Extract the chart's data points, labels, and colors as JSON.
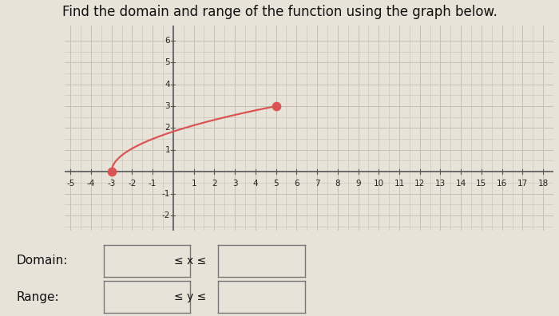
{
  "title": "Find the domain and range of the function using the graph below.",
  "title_fontsize": 12,
  "background_color": "#e8e3d8",
  "grid_color": "#c8c0b0",
  "axis_color": "#555555",
  "curve_color": "#d95555",
  "dot_color": "#d95555",
  "dot_size": 55,
  "x_start": -3,
  "y_start": 0,
  "x_end": 5,
  "y_end": 3,
  "xlim": [
    -5.3,
    18.5
  ],
  "ylim": [
    -2.7,
    6.7
  ],
  "xticks": [
    -5,
    -4,
    -3,
    -2,
    -1,
    1,
    2,
    3,
    4,
    5,
    6,
    7,
    8,
    9,
    10,
    11,
    12,
    13,
    14,
    15,
    16,
    17,
    18
  ],
  "yticks": [
    -2,
    -1,
    1,
    2,
    3,
    4,
    5,
    6
  ],
  "minor_xticks": [
    -4.5,
    -3.5,
    -2.5,
    -1.5,
    -0.5,
    0.5,
    1.5,
    2.5,
    3.5,
    4.5,
    5.5,
    6.5,
    7.5,
    8.5,
    9.5,
    10.5,
    11.5,
    12.5,
    13.5,
    14.5,
    15.5,
    16.5,
    17.5
  ],
  "minor_yticks": [
    -2.5,
    -1.5,
    -0.5,
    0.5,
    1.5,
    2.5,
    3.5,
    4.5,
    5.5
  ],
  "domain_label": "Domain:",
  "range_label": "Range:",
  "leq_x_leq": "≤ x ≤",
  "leq_y_leq": "≤ y ≤"
}
